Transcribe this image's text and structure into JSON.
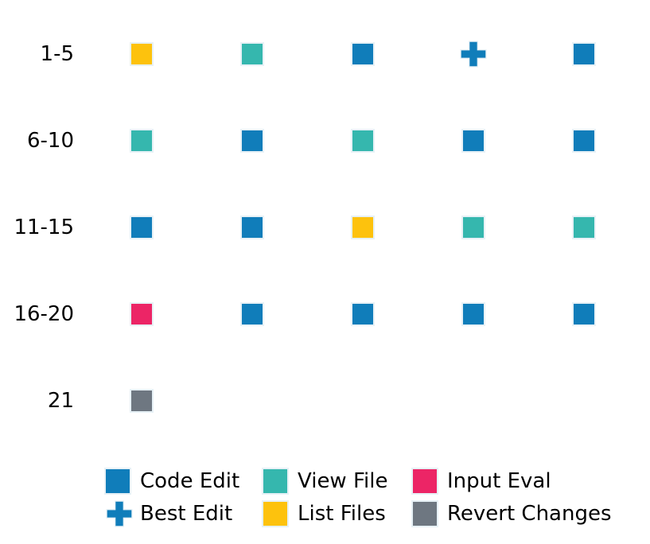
{
  "figure": {
    "background": "#ffffff",
    "halo_color": "#e7f1f6"
  },
  "chart_data": {
    "type": "scatter",
    "title": "",
    "xlabel": "",
    "ylabel": "",
    "grid": false,
    "columns_per_row": 5,
    "rows": [
      {
        "label": "1-5",
        "actions": [
          "List Files",
          "View File",
          "Code Edit",
          "Best Edit",
          "Code Edit"
        ]
      },
      {
        "label": "6-10",
        "actions": [
          "View File",
          "Code Edit",
          "View File",
          "Code Edit",
          "Code Edit"
        ]
      },
      {
        "label": "11-15",
        "actions": [
          "Code Edit",
          "Code Edit",
          "List Files",
          "View File",
          "View File"
        ]
      },
      {
        "label": "16-20",
        "actions": [
          "Input Eval",
          "Code Edit",
          "Code Edit",
          "Code Edit",
          "Code Edit"
        ]
      },
      {
        "label": "21",
        "actions": [
          "Revert Changes"
        ]
      }
    ],
    "legend": {
      "position": "bottom",
      "rows": [
        [
          {
            "label": "Code Edit",
            "marker": "square",
            "color": "#107dba"
          },
          {
            "label": "View File",
            "marker": "square",
            "color": "#35b7ae"
          },
          {
            "label": "Input Eval",
            "marker": "square",
            "color": "#ec2566"
          }
        ],
        [
          {
            "label": "Best Edit",
            "marker": "plus",
            "color": "#107dba"
          },
          {
            "label": "List Files",
            "marker": "square",
            "color": "#fdc20d"
          },
          {
            "label": "Revert Changes",
            "marker": "square",
            "color": "#6e7781"
          }
        ]
      ]
    }
  }
}
